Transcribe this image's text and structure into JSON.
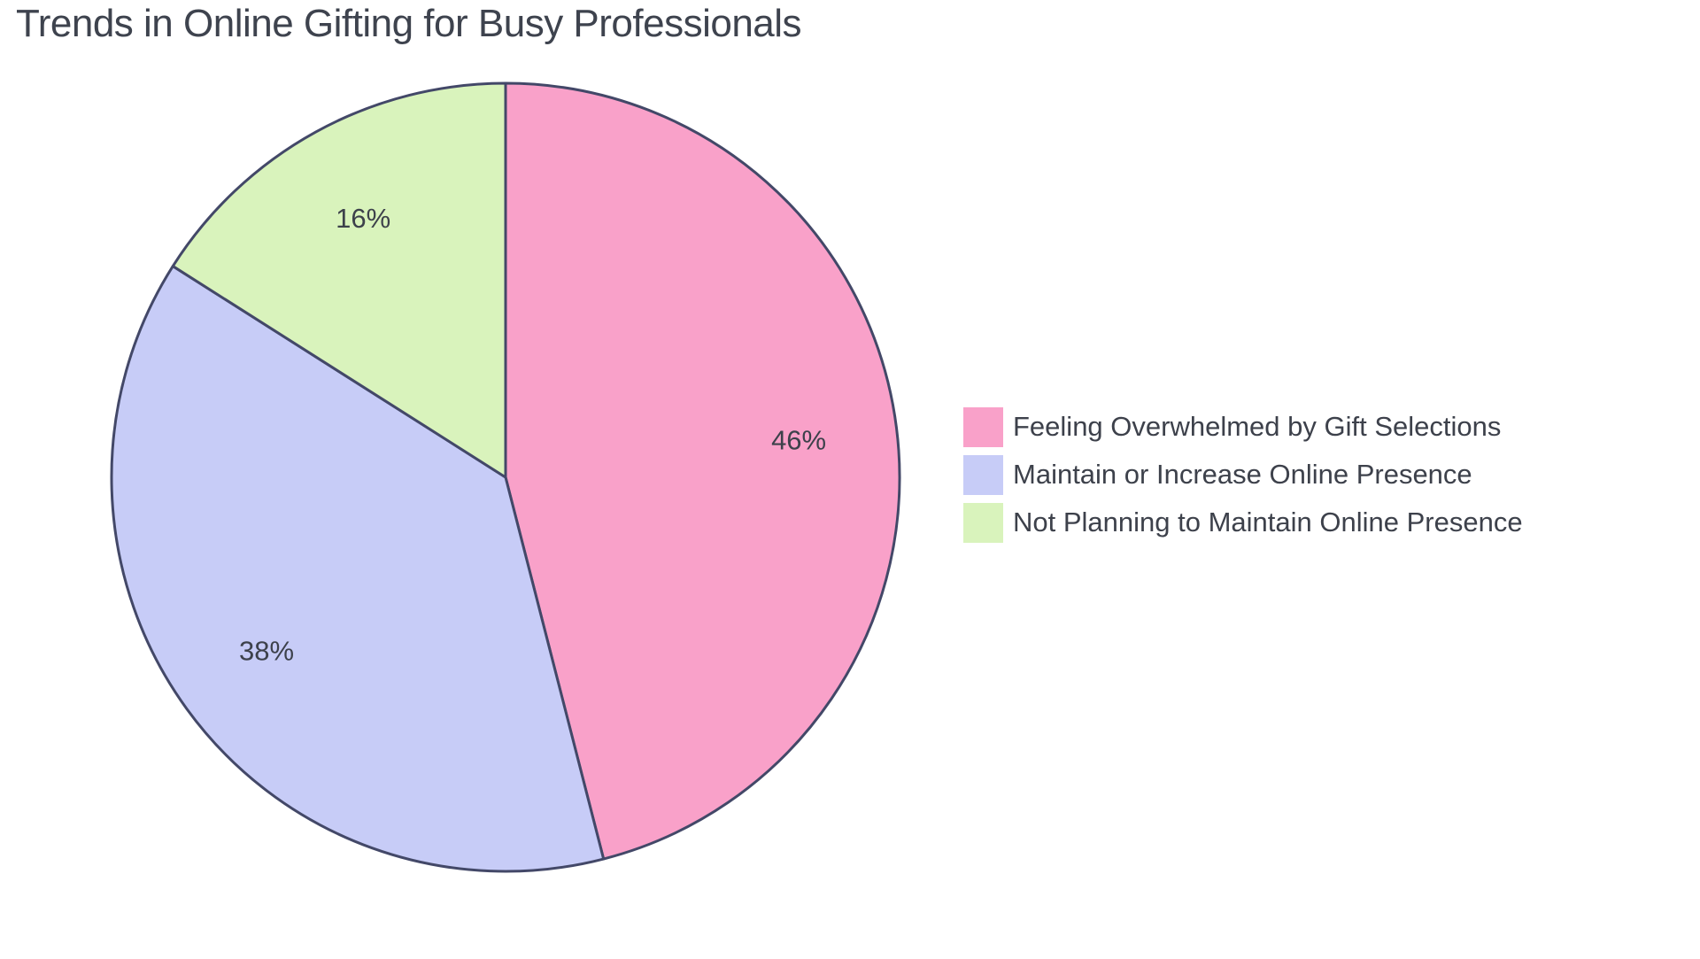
{
  "header": {
    "title": "Trends in Online Gifting for Busy Professionals"
  },
  "chart_data": {
    "type": "pie",
    "title": "Trends in Online Gifting for Busy Professionals",
    "slices": [
      {
        "label": "Feeling Overwhelmed by Gift Selections",
        "value": 46,
        "percent_label": "46%",
        "color": "#F9A1C9"
      },
      {
        "label": "Maintain or Increase Online Presence",
        "value": 38,
        "percent_label": "38%",
        "color": "#C7CCF7"
      },
      {
        "label": "Not Planning to Maintain Online Presence",
        "value": 16,
        "percent_label": "16%",
        "color": "#D9F3BC"
      }
    ],
    "start_angle_deg": 0,
    "direction": "clockwise",
    "legend_position": "right",
    "stroke_color": "#434868",
    "label_color": "#3D414B",
    "title_color": "#3E434E",
    "background_color": "#FFFFFF"
  }
}
